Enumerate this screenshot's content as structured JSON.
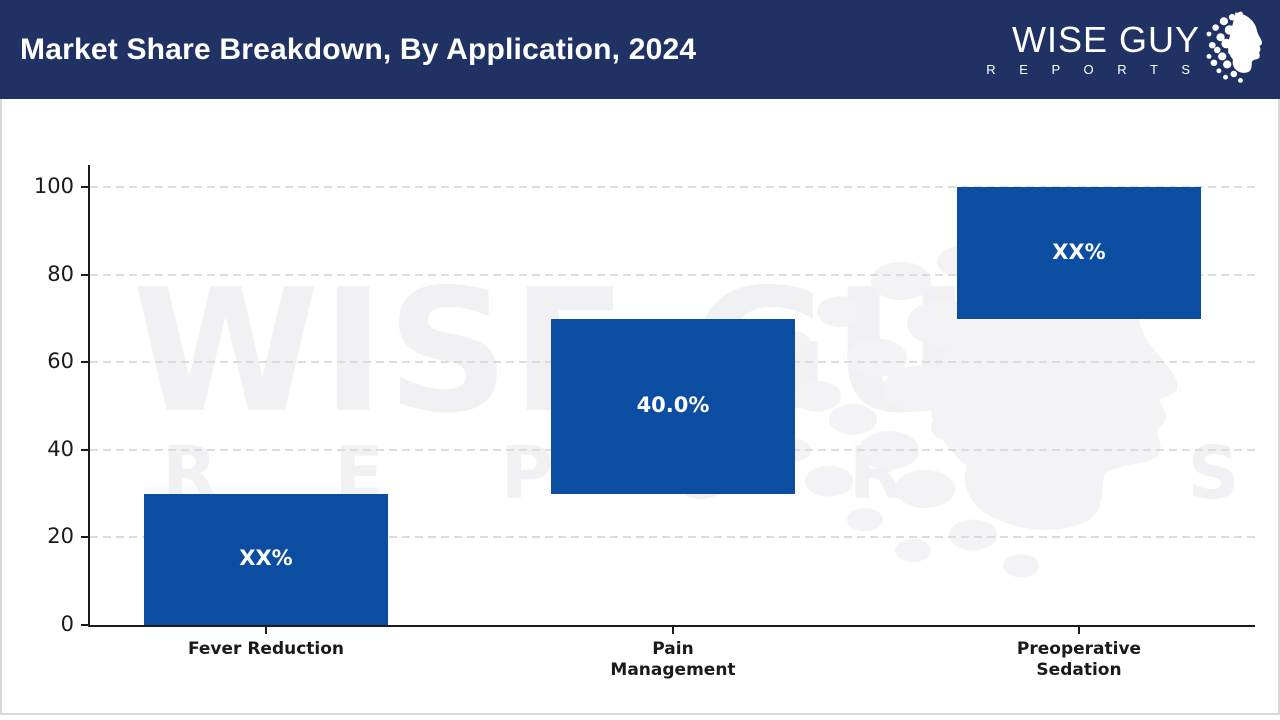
{
  "header": {
    "title": "Market Share Breakdown, By Application, 2024",
    "background_color": "#203264",
    "logo": {
      "wordmark": "WISE GUY",
      "subtext": "R E P O R T S"
    }
  },
  "watermark": {
    "line1": "WISE GUY",
    "line2": "R E P O R T S"
  },
  "chart_data": {
    "type": "bar",
    "subtype": "floating-range-bars (waterfall style market share breakdown)",
    "title": "Market Share Breakdown, By Application, 2024",
    "categories": [
      "Fever Reduction",
      "Pain Management",
      "Preoperative Sedation"
    ],
    "segments": [
      {
        "category": "Fever Reduction",
        "start": 0,
        "end": 30,
        "label": "XX%"
      },
      {
        "category": "Pain Management",
        "start": 30,
        "end": 70,
        "label": "40.0%"
      },
      {
        "category": "Preoperative Sedation",
        "start": 70,
        "end": 100,
        "label": "XX%"
      }
    ],
    "yticks": [
      0,
      20,
      40,
      60,
      80,
      100
    ],
    "ylim": [
      0,
      105
    ],
    "xlabel": "",
    "ylabel": "",
    "grid": "horizontal dashed",
    "legend": "none",
    "colors": {
      "bar": "#0b4da1",
      "bar_label": "#ffffff",
      "grid_line": "#dcdcdc",
      "axis_line": "#1c1c1c",
      "tick_label": "#1a1a1a"
    }
  }
}
